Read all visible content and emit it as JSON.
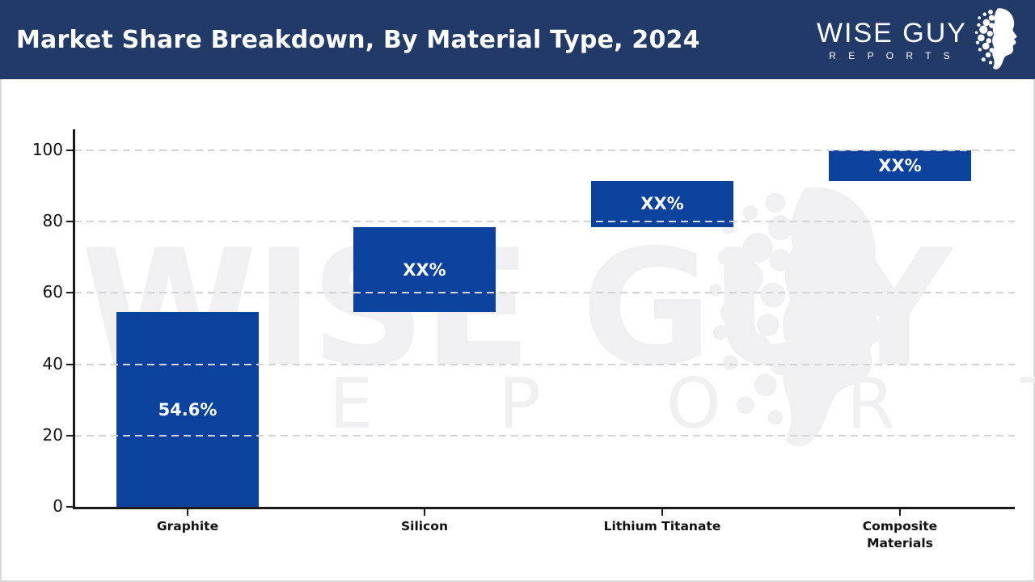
{
  "header": {
    "title": "Market Share Breakdown, By Material Type, 2024",
    "logo": {
      "wordmark": "WISE GUY",
      "subtext": "R E P O R T S"
    }
  },
  "watermark": {
    "wordmark": "WISE GUY",
    "subtext": "R E P O R T S"
  },
  "colors": {
    "header_bg": "#213a68",
    "bar_blue": "#0a429d",
    "axis": "#1a1a1a",
    "gridline": "#d4d4d4",
    "watermark": "#f0f0f2",
    "label_on_bar": "#ffffff"
  },
  "chart_data": {
    "type": "bar",
    "subtype": "waterfall",
    "title": "Market Share Breakdown, By Material Type, 2024",
    "xlabel": "",
    "ylabel": "",
    "ylim": [
      0,
      105
    ],
    "yticks": [
      0,
      20,
      40,
      60,
      80,
      100
    ],
    "grid": "dashed-horizontal",
    "legend": "none",
    "categories": [
      "Graphite",
      "Silicon",
      "Lithium Titanate",
      "Composite Materials"
    ],
    "segments": [
      {
        "category": "Graphite",
        "start": 0,
        "end": 54.6,
        "value_label": "54.6%",
        "value": 54.6
      },
      {
        "category": "Silicon",
        "start": 54.6,
        "end": 78.5,
        "value_label": "XX%",
        "value_estimate": 23.9
      },
      {
        "category": "Lithium Titanate",
        "start": 78.5,
        "end": 91.4,
        "value_label": "XX%",
        "value_estimate": 12.9
      },
      {
        "category": "Composite Materials",
        "start": 91.4,
        "end": 100,
        "value_label": "XX%",
        "value_estimate": 8.6
      }
    ]
  }
}
